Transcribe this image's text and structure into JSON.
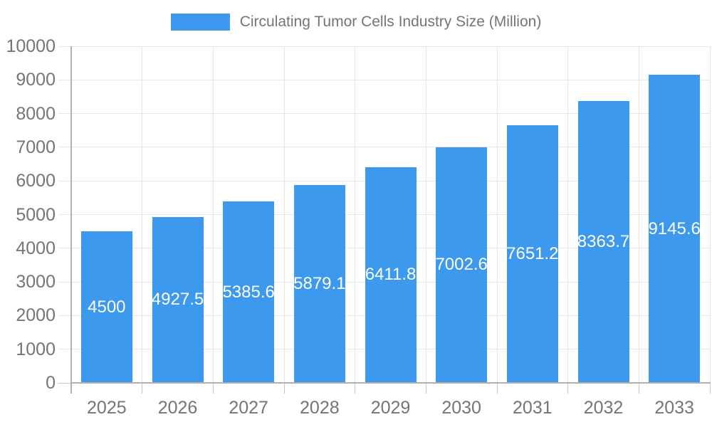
{
  "legend": {
    "label": "Circulating Tumor Cells Industry Size (Million)"
  },
  "chart_data": {
    "type": "bar",
    "title": "Circulating Tumor Cells Industry Size (Million)",
    "categories": [
      "2025",
      "2026",
      "2027",
      "2028",
      "2029",
      "2030",
      "2031",
      "2032",
      "2033"
    ],
    "values": [
      4500,
      4927.5,
      5385.6,
      5879.1,
      6411.8,
      7002.6,
      7651.2,
      8363.7,
      9145.6
    ],
    "value_labels": [
      "4500",
      "4927.5",
      "5385.6",
      "5879.1",
      "6411.8",
      "7002.6",
      "7651.2",
      "8363.7",
      "9145.6"
    ],
    "xlabel": "",
    "ylabel": "",
    "ylim": [
      0,
      10000
    ],
    "yticks": [
      0,
      1000,
      2000,
      3000,
      4000,
      5000,
      6000,
      7000,
      8000,
      9000,
      10000
    ],
    "grid": true,
    "legend_position": "top",
    "colors": {
      "bar": "#3C99EE",
      "gridline": "#E6E6E6",
      "axis_line": "#B0B0B0",
      "tick": "#C6C6C6",
      "axis_text": "#757575",
      "value_text": "#FFFFFF",
      "background": "#FFFFFF"
    }
  }
}
